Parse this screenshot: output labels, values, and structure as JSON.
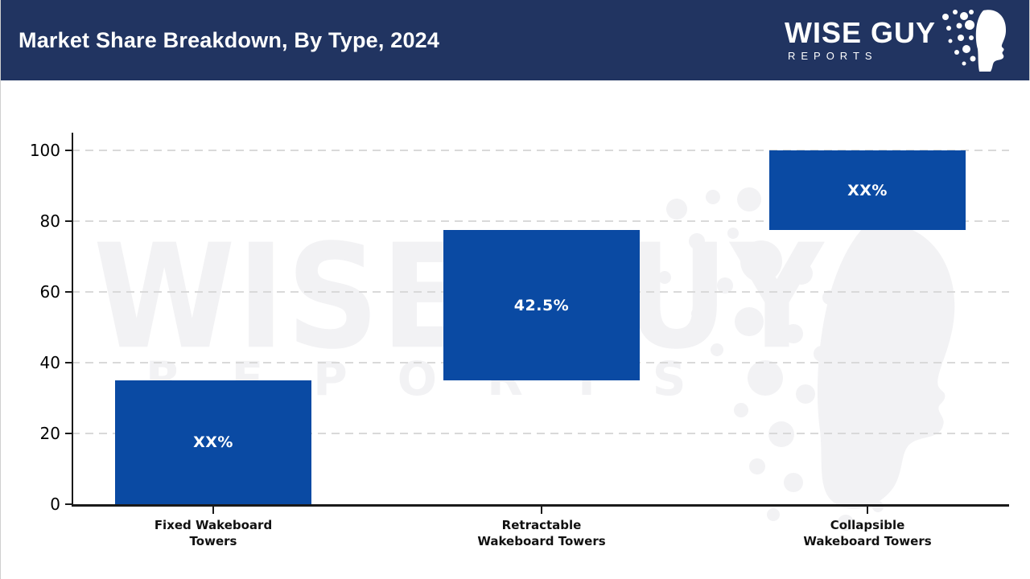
{
  "header": {
    "title": "Market Share Breakdown, By Type, 2024",
    "logo": {
      "name": "WISE GUY",
      "subtitle": "REPORTS"
    }
  },
  "watermark": {
    "word1": "WISE GUY",
    "word2": "REPORTS"
  },
  "colors": {
    "header_bg": "#213461",
    "bar_blue": "#0a4aa3",
    "grid_gray": "#d9d9d9",
    "watermark_gray": "#f2f2f4"
  },
  "chart_data": {
    "type": "bar",
    "subtype": "floating-waterfall",
    "title": "Market Share Breakdown, By Type, 2024",
    "categories": [
      [
        "Fixed Wakeboard",
        "Towers"
      ],
      [
        "Retractable",
        "Wakeboard Towers"
      ],
      [
        "Collapsible",
        "Wakeboard Towers"
      ]
    ],
    "series": [
      {
        "name": "Market Share (%)",
        "segments": [
          {
            "start": 0,
            "end": 35,
            "value": 35,
            "label": "XX%"
          },
          {
            "start": 35,
            "end": 77.5,
            "value": 42.5,
            "label": "42.5%"
          },
          {
            "start": 77.5,
            "end": 100,
            "value": 22.5,
            "label": "XX%"
          }
        ]
      }
    ],
    "ylim": [
      0,
      100
    ],
    "yticks": [
      0,
      20,
      40,
      60,
      80,
      100
    ],
    "xlabel": "",
    "ylabel": "",
    "grid": {
      "horizontal": true,
      "style": "dashed"
    },
    "legend": "none",
    "bar_label_color": "#ffffff"
  }
}
